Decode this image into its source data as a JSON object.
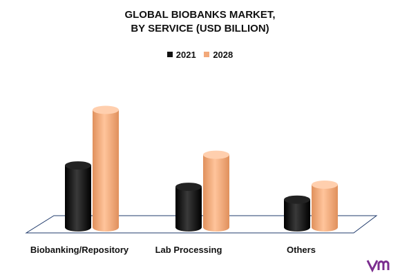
{
  "chart_data": {
    "type": "bar",
    "title_lines": [
      "GLOBAL BIOBANKS MARKET,",
      "BY SERVICE (USD BILLION)"
    ],
    "categories": [
      "Biobanking/Repository",
      "Lab Processing",
      "Others"
    ],
    "series": [
      {
        "name": "2021",
        "values": [
          29,
          19,
          13
        ],
        "color": "#111111"
      },
      {
        "name": "2028",
        "values": [
          55,
          34,
          20
        ],
        "color": "#f2a97a"
      }
    ],
    "ylim": [
      0,
      60
    ],
    "grid": false,
    "legend_position": "top-center",
    "style": "3d-cylinder"
  },
  "brand": {
    "logo_icon": "vmr-logo-icon",
    "accent": "#7b2d8f"
  }
}
